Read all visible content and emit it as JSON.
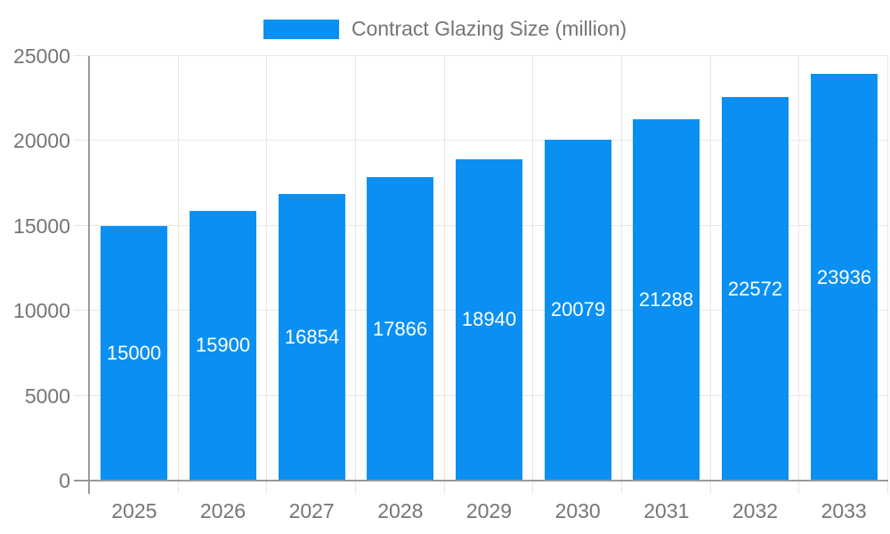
{
  "colors": {
    "bar": "#0A90F2",
    "grid": "#e6e6e6",
    "axis": "#999999",
    "tick_label": "#757575",
    "legend_text": "#757575",
    "value_label": "#ffffff",
    "background": "#ffffff"
  },
  "chart_data": {
    "type": "bar",
    "series_name": "Contract Glazing Size (million)",
    "categories": [
      "2025",
      "2026",
      "2027",
      "2028",
      "2029",
      "2030",
      "2031",
      "2032",
      "2033"
    ],
    "values": [
      15000,
      15900,
      16854,
      17866,
      18940,
      20079,
      21288,
      22572,
      23936
    ],
    "xlabel": "",
    "ylabel": "",
    "ylim": [
      0,
      25000
    ],
    "ytick_step": 5000,
    "ytick_labels": [
      "0",
      "5000",
      "10000",
      "15000",
      "20000",
      "25000"
    ],
    "grid": true,
    "legend_position": "top-center",
    "value_label_position": "inside-middle"
  }
}
